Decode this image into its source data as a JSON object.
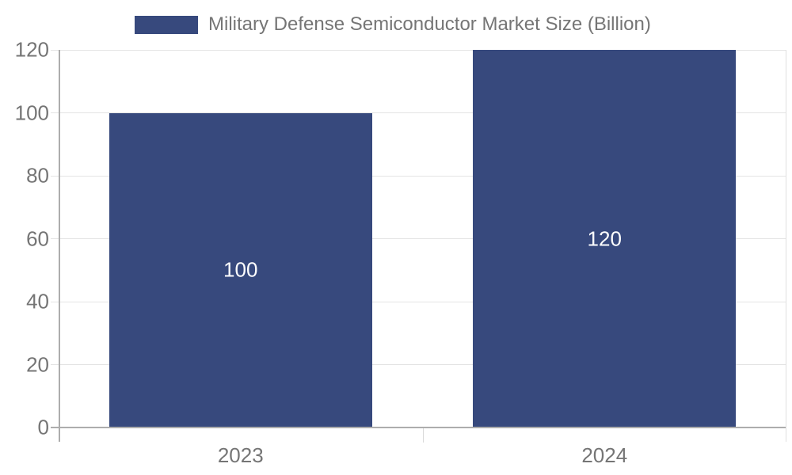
{
  "chart_data": {
    "type": "bar",
    "title": "",
    "xlabel": "",
    "ylabel": "",
    "categories": [
      "2023",
      "2024"
    ],
    "values": [
      100,
      120
    ],
    "value_labels": [
      "100",
      "120"
    ],
    "ylim": [
      0,
      120
    ],
    "yticks": [
      0,
      20,
      40,
      60,
      80,
      100,
      120
    ],
    "grid": true,
    "legend": [
      {
        "label": "Military Defense Semiconductor Market Size (Billion)",
        "color": "#37497D"
      }
    ],
    "legend_position": "top",
    "colors": {
      "bar": "#37497D",
      "value_label": "#ffffff",
      "tick_label": "#757575",
      "legend_text": "#757575",
      "gridline": "#e4e4e4",
      "axis_line": "#adadad",
      "minor_tick": "#d9d9d9",
      "plot_border": "#e0e0e0",
      "background": "#ffffff"
    }
  }
}
